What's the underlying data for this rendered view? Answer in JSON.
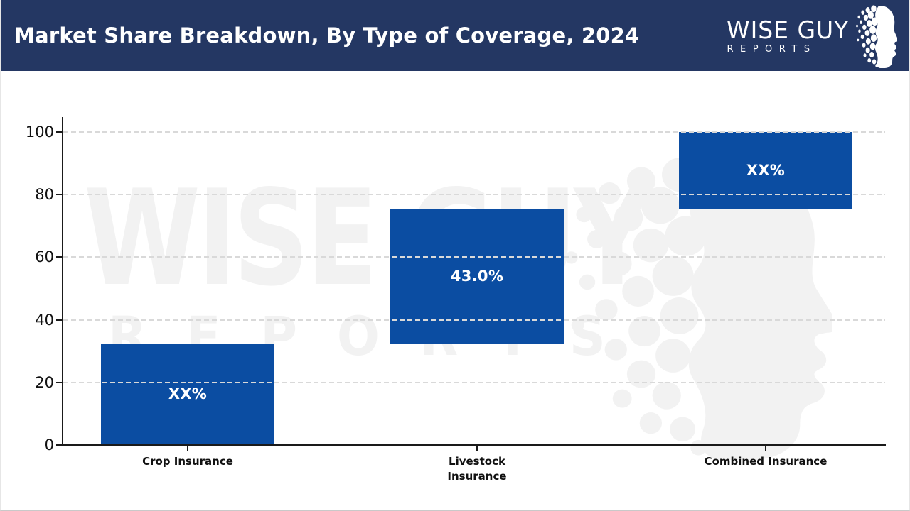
{
  "header": {
    "title": "Market Share Breakdown, By Type of Coverage, 2024",
    "logo": {
      "wordmark": "WISE GUY",
      "subtext": "REPORTS"
    }
  },
  "watermark": {
    "wordmark": "WISE GUY",
    "subtext": "REPORTS"
  },
  "chart_data": {
    "type": "bar",
    "subtype": "floating-segment-waterfall",
    "title": "Market Share Breakdown, By Type of Coverage, 2024",
    "categories": [
      "Crop Insurance",
      "Livestock Insurance",
      "Combined Insurance"
    ],
    "category_label_lines": [
      [
        "Crop Insurance"
      ],
      [
        "Livestock",
        "Insurance"
      ],
      [
        "Combined Insurance"
      ]
    ],
    "segments": [
      {
        "category": "Crop Insurance",
        "start": 0,
        "end": 32.5,
        "value_label": "XX%"
      },
      {
        "category": "Livestock Insurance",
        "start": 32.5,
        "end": 75.5,
        "value_label": "43.0%"
      },
      {
        "category": "Combined Insurance",
        "start": 75.5,
        "end": 100,
        "value_label": "XX%"
      }
    ],
    "xlabel": "",
    "ylabel": "",
    "ylim": [
      0,
      100
    ],
    "yticks": [
      0,
      20,
      40,
      60,
      80,
      100
    ],
    "grid": {
      "horizontal": true,
      "style": "dashed",
      "drawn_above_bars": true
    },
    "legend": "none"
  },
  "colors": {
    "header_bg": "#243763",
    "bar_blue": "#0b4da2",
    "gridline": "#d9d9d9",
    "axis": "#1a1a1a",
    "watermark": "#f2f2f2",
    "title_text": "#ffffff",
    "bar_label_text": "#ffffff",
    "tick_label_text": "#111111"
  }
}
